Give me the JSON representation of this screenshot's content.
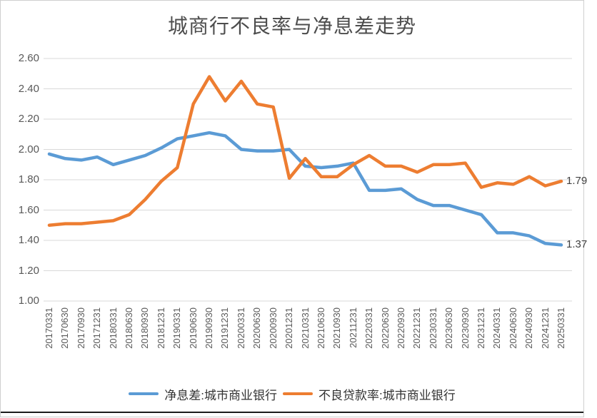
{
  "title": "城商行不良率与净息差走势",
  "colors": {
    "nim_blue": "#5B9BD5",
    "npl_orange": "#ED7D31",
    "grid": "#D9D9D9",
    "axis_text": "#595959",
    "title_text": "#4D4D4D"
  },
  "chart_data": {
    "type": "line",
    "title": "城商行不良率与净息差走势",
    "xlabel": "",
    "ylabel": "",
    "ylim": [
      1.0,
      2.6
    ],
    "ytick_step": 0.2,
    "yticks": [
      "2.60",
      "2.40",
      "2.20",
      "2.00",
      "1.80",
      "1.60",
      "1.40",
      "1.20",
      "1.00"
    ],
    "grid": "horizontal",
    "legend_position": "bottom",
    "categories": [
      "20170331",
      "20170630",
      "20170930",
      "20171231",
      "20180331",
      "20180630",
      "20180930",
      "20181231",
      "20190331",
      "20190630",
      "20190930",
      "20191231",
      "20200331",
      "20200630",
      "20200930",
      "20201231",
      "20210331",
      "20210630",
      "20210930",
      "20211231",
      "20220331",
      "20220630",
      "20220930",
      "20221231",
      "20230331",
      "20230630",
      "20230930",
      "20231231",
      "20240331",
      "20240630",
      "20240930",
      "20241231",
      "20250331"
    ],
    "series": [
      {
        "name": "净息差:城市商业银行",
        "color": "#5B9BD5",
        "end_label": "1.37",
        "values": [
          1.97,
          1.94,
          1.93,
          1.95,
          1.9,
          1.93,
          1.96,
          2.01,
          2.07,
          2.09,
          2.11,
          2.09,
          2.0,
          1.99,
          1.99,
          2.0,
          1.89,
          1.88,
          1.89,
          1.91,
          1.73,
          1.73,
          1.74,
          1.67,
          1.63,
          1.63,
          1.6,
          1.57,
          1.45,
          1.45,
          1.43,
          1.38,
          1.37
        ]
      },
      {
        "name": "不良贷款率:城市商业银行",
        "color": "#ED7D31",
        "end_label": "1.79",
        "values": [
          1.5,
          1.51,
          1.51,
          1.52,
          1.53,
          1.57,
          1.67,
          1.79,
          1.88,
          2.3,
          2.48,
          2.32,
          2.45,
          2.3,
          2.28,
          1.81,
          1.94,
          1.82,
          1.82,
          1.9,
          1.96,
          1.89,
          1.89,
          1.85,
          1.9,
          1.9,
          1.91,
          1.75,
          1.78,
          1.77,
          1.82,
          1.76,
          1.79
        ]
      }
    ]
  }
}
